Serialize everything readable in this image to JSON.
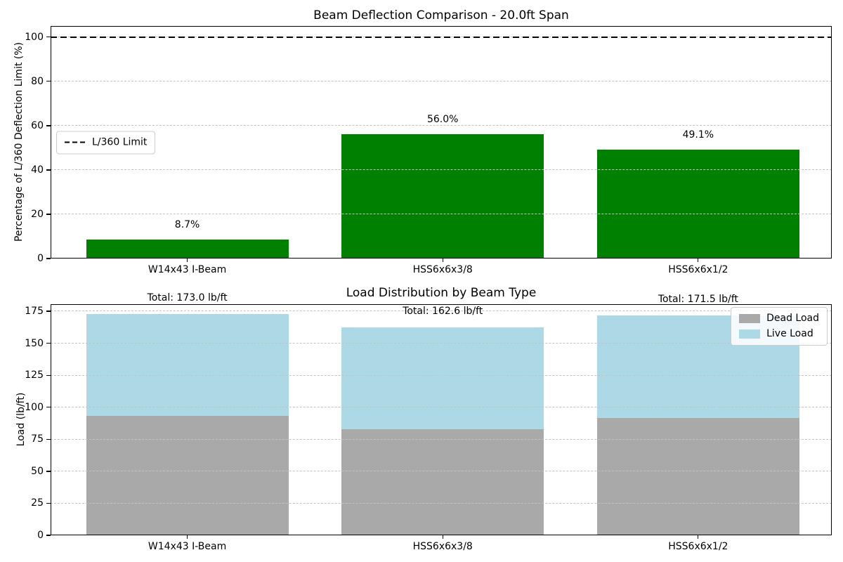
{
  "figure": {
    "background": "#ffffff"
  },
  "chart_data": [
    {
      "type": "bar",
      "title": "Beam Deflection Comparison - 20.0ft Span",
      "ylabel": "Percentage of L/360 Deflection Limit (%)",
      "xlabel": "",
      "categories": [
        "W14x43 I-Beam",
        "HSS6x6x3/8",
        "HSS6x6x1/2"
      ],
      "values": [
        8.7,
        56.0,
        49.1
      ],
      "bar_labels": [
        "8.7%",
        "56.0%",
        "49.1%"
      ],
      "bar_color": "#008000",
      "ylim": [
        0,
        105
      ],
      "yticks": [
        0,
        20,
        40,
        60,
        80,
        100
      ],
      "grid": true,
      "grid_style": "dashed",
      "limit_line": {
        "value": 100,
        "color": "#000000",
        "style": "dashed",
        "label": "L/360 Limit"
      },
      "legend": {
        "position": "center-left",
        "entries": [
          {
            "label": "L/360 Limit",
            "swatch": "dashed-line",
            "color": "#000000"
          }
        ]
      }
    },
    {
      "type": "stacked-bar",
      "title": "Load Distribution by Beam Type",
      "ylabel": "Load (lb/ft)",
      "xlabel": "",
      "categories": [
        "W14x43 I-Beam",
        "HSS6x6x3/8",
        "HSS6x6x1/2"
      ],
      "series": [
        {
          "name": "Dead Load",
          "color": "#a9a9a9",
          "values": [
            93.0,
            82.6,
            91.5
          ]
        },
        {
          "name": "Live Load",
          "color": "#add8e6",
          "values": [
            80.0,
            80.0,
            80.0
          ]
        }
      ],
      "totals": [
        173.0,
        162.6,
        171.5
      ],
      "total_labels": [
        "Total: 173.0 lb/ft",
        "Total: 162.6 lb/ft",
        "Total: 171.5 lb/ft"
      ],
      "ylim": [
        0,
        180.5
      ],
      "yticks": [
        0,
        25,
        50,
        75,
        100,
        125,
        150,
        175
      ],
      "grid": true,
      "grid_style": "dashed",
      "legend": {
        "position": "upper-right",
        "entries": [
          {
            "label": "Dead Load",
            "swatch": "patch",
            "color": "#a9a9a9"
          },
          {
            "label": "Live Load",
            "swatch": "patch",
            "color": "#add8e6"
          }
        ]
      }
    }
  ]
}
